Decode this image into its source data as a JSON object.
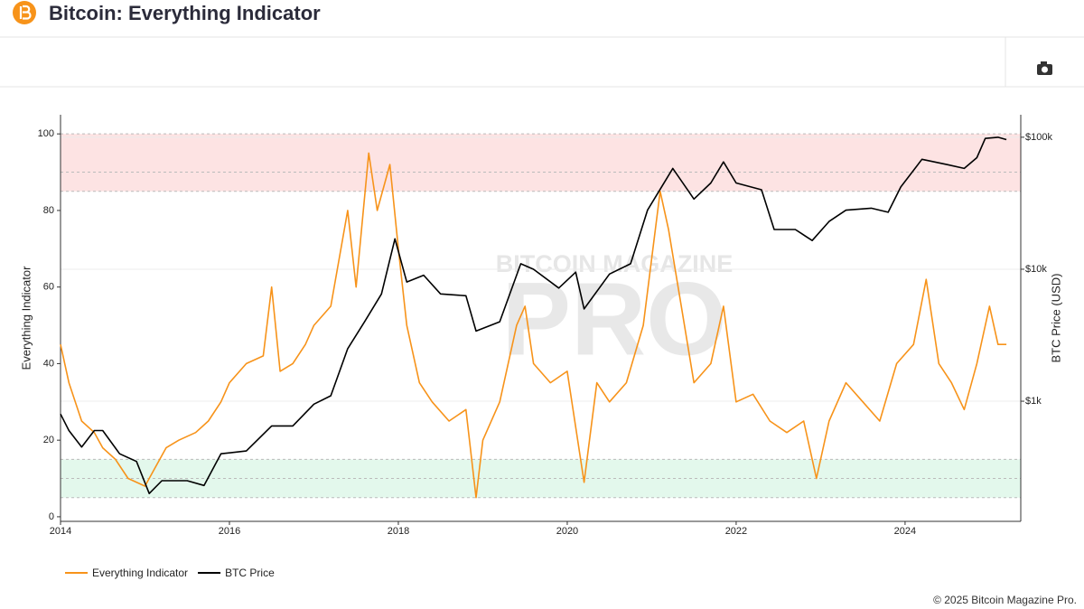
{
  "header": {
    "title": "Bitcoin: Everything Indicator"
  },
  "chart_data": {
    "type": "line",
    "watermark": [
      "BITCOIN MAGAZINE",
      "PRO"
    ],
    "y_label": "Everything Indicator",
    "y2_label": "BTC Price (USD)",
    "xlim": [
      2014,
      2025.37
    ],
    "xticks": [
      2014,
      2016,
      2018,
      2020,
      2022,
      2024
    ],
    "ylim": [
      -1.2,
      105
    ],
    "yticks": [
      0,
      20,
      40,
      60,
      80,
      100
    ],
    "y2lim": [
      123,
      148000
    ],
    "y2scale": "log",
    "y2ticks": [
      {
        "value": 1000,
        "label": "$1k"
      },
      {
        "value": 10000,
        "label": "$10k"
      },
      {
        "value": 100000,
        "label": "$100k"
      }
    ],
    "grid": true,
    "legend": "bottom-left",
    "bands": [
      {
        "from": 85,
        "to": 100,
        "color": "#fde3e3"
      },
      {
        "from": 5,
        "to": 15,
        "color": "#e3f8ec"
      }
    ],
    "reference_lines": [
      90,
      10
    ],
    "series": [
      {
        "name": "Everything Indicator",
        "color": "#f7931a",
        "x": [
          2014.0,
          2014.1,
          2014.25,
          2014.4,
          2014.5,
          2014.65,
          2014.8,
          2015.0,
          2015.1,
          2015.25,
          2015.4,
          2015.6,
          2015.75,
          2015.9,
          2016.0,
          2016.2,
          2016.4,
          2016.5,
          2016.6,
          2016.75,
          2016.9,
          2017.0,
          2017.2,
          2017.4,
          2017.5,
          2017.65,
          2017.75,
          2017.9,
          2018.0,
          2018.1,
          2018.25,
          2018.4,
          2018.6,
          2018.8,
          2018.92,
          2019.0,
          2019.2,
          2019.4,
          2019.5,
          2019.6,
          2019.8,
          2020.0,
          2020.2,
          2020.35,
          2020.5,
          2020.7,
          2020.9,
          2021.1,
          2021.2,
          2021.35,
          2021.5,
          2021.7,
          2021.85,
          2022.0,
          2022.2,
          2022.4,
          2022.6,
          2022.8,
          2022.95,
          2023.1,
          2023.3,
          2023.5,
          2023.7,
          2023.9,
          2024.1,
          2024.25,
          2024.4,
          2024.55,
          2024.7,
          2024.85,
          2025.0,
          2025.1,
          2025.2
        ],
        "values": [
          45,
          35,
          25,
          22,
          18,
          15,
          10,
          8,
          12,
          18,
          20,
          22,
          25,
          30,
          35,
          40,
          42,
          60,
          38,
          40,
          45,
          50,
          55,
          80,
          60,
          95,
          80,
          92,
          70,
          50,
          35,
          30,
          25,
          28,
          5,
          20,
          30,
          50,
          55,
          40,
          35,
          38,
          9,
          35,
          30,
          35,
          50,
          85,
          75,
          55,
          35,
          40,
          55,
          30,
          32,
          25,
          22,
          25,
          10,
          25,
          35,
          30,
          25,
          40,
          45,
          62,
          40,
          35,
          28,
          40,
          55,
          45,
          45
        ]
      },
      {
        "name": "BTC Price",
        "color": "#000000",
        "axis": "y2",
        "x": [
          2014.0,
          2014.1,
          2014.25,
          2014.4,
          2014.5,
          2014.7,
          2014.9,
          2015.05,
          2015.2,
          2015.5,
          2015.7,
          2015.9,
          2016.2,
          2016.5,
          2016.75,
          2017.0,
          2017.2,
          2017.4,
          2017.6,
          2017.8,
          2017.96,
          2018.1,
          2018.3,
          2018.5,
          2018.8,
          2018.92,
          2019.2,
          2019.45,
          2019.6,
          2019.9,
          2020.1,
          2020.2,
          2020.5,
          2020.75,
          2020.95,
          2021.25,
          2021.5,
          2021.7,
          2021.85,
          2022.0,
          2022.3,
          2022.45,
          2022.7,
          2022.9,
          2023.1,
          2023.3,
          2023.6,
          2023.8,
          2023.95,
          2024.2,
          2024.5,
          2024.7,
          2024.85,
          2024.95,
          2025.1,
          2025.2
        ],
        "values": [
          800,
          600,
          450,
          600,
          600,
          400,
          350,
          200,
          250,
          250,
          230,
          400,
          420,
          650,
          650,
          950,
          1100,
          2500,
          4000,
          6500,
          17000,
          8000,
          9000,
          6500,
          6300,
          3400,
          4000,
          11000,
          10000,
          7200,
          9500,
          5000,
          9200,
          11000,
          28000,
          58000,
          34000,
          45000,
          65000,
          45000,
          40000,
          20000,
          20000,
          16500,
          23000,
          28000,
          29000,
          27000,
          42000,
          68000,
          62000,
          58000,
          70000,
          98000,
          100000,
          96000
        ]
      }
    ]
  },
  "footer": "© 2025 Bitcoin Magazine Pro."
}
